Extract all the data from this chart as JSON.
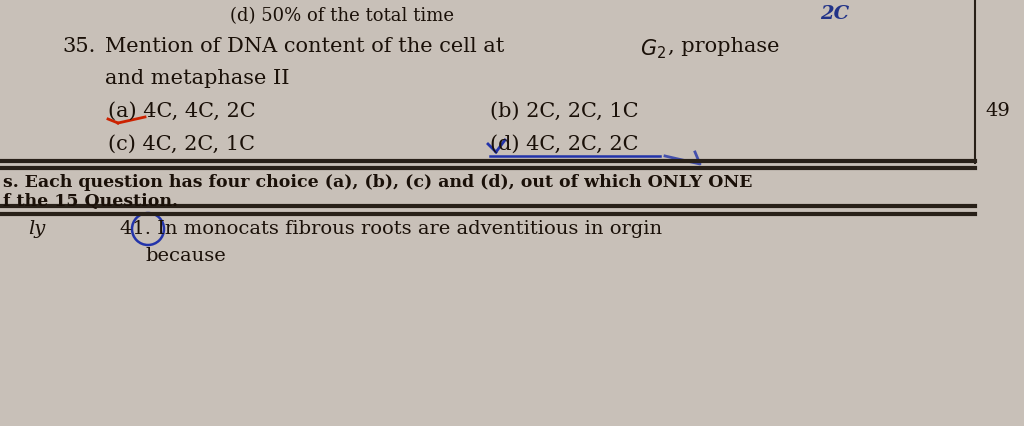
{
  "page_bg": "#c8c0b8",
  "top_text": "(d) 50% of the total time",
  "top_right_handwritten": "2C",
  "question_number": "35.",
  "q_line1a": "Mention of DNA content of the cell at ",
  "q_g2": "$G_2$",
  "q_line1b": ", prophase",
  "q_line2": "and metaphase II",
  "option_a": "(a) 4C, 4C, 2C",
  "option_b": "(b) 2C, 2C, 1C",
  "option_c": "(c) 4C, 2C, 1C",
  "option_d": "(d) 4C, 2C, 2C",
  "bottom_line1": "s. Each question has four choice (a), (b), (c) and (d), out of which ONLY ONE",
  "bottom_line2": "f the 15 Question.",
  "bottom_prefix": "ly",
  "bottom_q": "41. In monocats fibrous roots are adventitious in orgin",
  "bottom_q2": "because",
  "side_num": "49",
  "text_color": "#1a1008",
  "line_color": "#282018",
  "red_color": "#cc2200",
  "blue_color": "#2233aa"
}
